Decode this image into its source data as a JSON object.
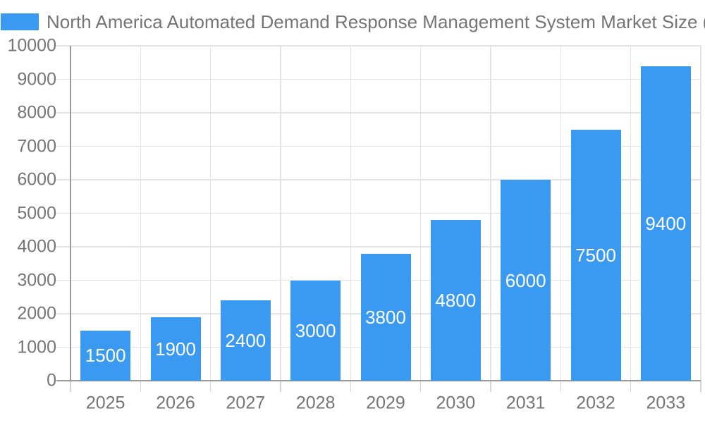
{
  "page": {
    "background": "#ffffff"
  },
  "legend": {
    "swatch_color": "#3a99f0"
  },
  "chart_data": {
    "type": "bar",
    "title": "North America Automated Demand Response Management System Market Size (Million USD)",
    "categories": [
      "2025",
      "2026",
      "2027",
      "2028",
      "2029",
      "2030",
      "2031",
      "2032",
      "2033"
    ],
    "values": [
      1500,
      1900,
      2400,
      3000,
      3800,
      4800,
      6000,
      7500,
      9400
    ],
    "xlabel": "",
    "ylabel": "",
    "ylim": [
      0,
      10000
    ],
    "ytick_step": 1000,
    "ytick_labels": [
      "0",
      "1000",
      "2000",
      "3000",
      "4000",
      "5000",
      "6000",
      "7000",
      "8000",
      "9000",
      "10000"
    ],
    "grid": true,
    "legend_position": "top-left",
    "bar_color": "#3a99f0",
    "bar_label_color": "#ffffff",
    "gridline_color": "#e3e3e3",
    "x_tick_color": "#d4d4d4",
    "axis_line_color": "#9b9b9b",
    "tick_label_color": "#757575"
  }
}
